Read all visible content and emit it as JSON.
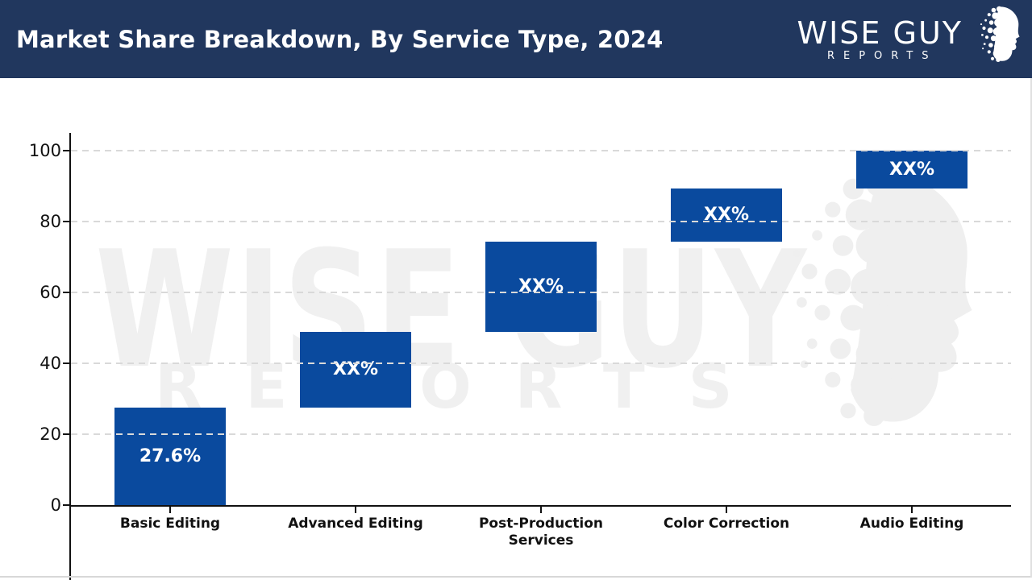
{
  "header": {
    "title": "Market Share Breakdown, By Service Type, 2024",
    "logo": {
      "name": "WISE GUY",
      "tagline": "REPORTS"
    }
  },
  "watermark": {
    "line1": "WISE GUY",
    "line2": "REPORTS"
  },
  "colors": {
    "header_bg": "#21375E",
    "bar_blue": "#0A4A9E",
    "grid_gray": "#D9D9D9",
    "axis_black": "#111111"
  },
  "chart_data": {
    "type": "bar",
    "subtype": "floating-waterfall",
    "title": "Market Share Breakdown, By Service Type, 2024",
    "xlabel": "",
    "ylabel": "",
    "ylim": [
      0,
      100
    ],
    "y_ticks": [
      0,
      20,
      40,
      60,
      80,
      100
    ],
    "grid": "horizontal-dashed",
    "legend": "none",
    "bar_color": "#0A4A9E",
    "bar_label_color": "#FFFFFF",
    "categories": [
      "Basic Editing",
      "Advanced Editing",
      "Post-Production Services",
      "Color Correction",
      "Audio Editing"
    ],
    "bars": [
      {
        "category": "Basic Editing",
        "start": 0,
        "end": 27.6,
        "label": "27.6%"
      },
      {
        "category": "Advanced Editing",
        "start": 27.6,
        "end": 48.9,
        "label": "XX%"
      },
      {
        "category": "Post-Production Services",
        "start": 48.9,
        "end": 74.3,
        "label": "XX%"
      },
      {
        "category": "Color Correction",
        "start": 74.3,
        "end": 89.4,
        "label": "XX%"
      },
      {
        "category": "Audio Editing",
        "start": 89.4,
        "end": 100,
        "label": "XX%"
      }
    ]
  }
}
